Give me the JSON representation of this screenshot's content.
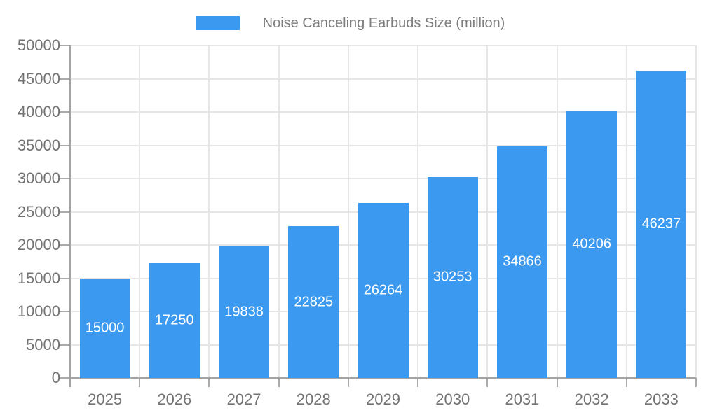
{
  "legend": {
    "label": "Noise Canceling Earbuds Size (million)"
  },
  "chart_data": {
    "type": "bar",
    "title": "Noise Canceling Earbuds Size (million)",
    "xlabel": "",
    "ylabel": "",
    "categories": [
      "2025",
      "2026",
      "2027",
      "2028",
      "2029",
      "2030",
      "2031",
      "2032",
      "2033"
    ],
    "values": [
      15000,
      17250,
      19838,
      22825,
      26264,
      30253,
      34866,
      40206,
      46237
    ],
    "value_labels": [
      "15000",
      "17250",
      "19838",
      "22825",
      "26264",
      "30253",
      "34866",
      "40206",
      "46237"
    ],
    "ylim": [
      0,
      50000
    ],
    "ytick_step": 5000,
    "yticks": [
      0,
      5000,
      10000,
      15000,
      20000,
      25000,
      30000,
      35000,
      40000,
      45000,
      50000
    ],
    "grid": true,
    "legend_position": "top-center",
    "value_label_position": "inside-center",
    "colors": {
      "bar": "#3b9af0",
      "value_label": "#ffffff",
      "grid": "#e6e6e6",
      "axis": "#a3a3a3",
      "tick": "#ababab",
      "tick_label": "#737373",
      "legend_text": "#7d7d7d",
      "background": "#ffffff"
    }
  }
}
